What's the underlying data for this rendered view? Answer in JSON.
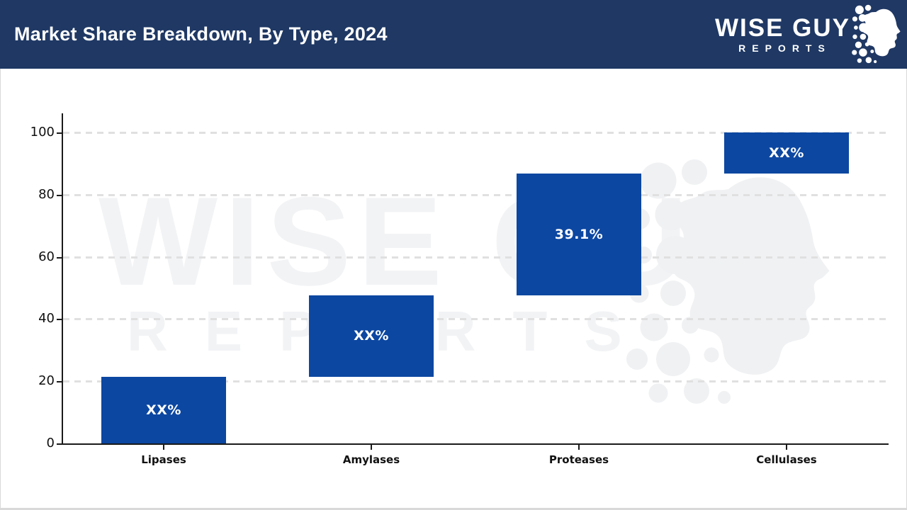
{
  "header": {
    "title": "Market Share Breakdown, By Type, 2024",
    "logo": {
      "line1": "WISE GUY",
      "line2": "REPORTS"
    }
  },
  "watermark": {
    "line1": "WISE GUY",
    "line2": "REPORTS"
  },
  "chart_data": {
    "type": "waterfall",
    "title": "Market Share Breakdown, By Type, 2024",
    "categories": [
      "Lipases",
      "Amylases",
      "Proteases",
      "Cellulases"
    ],
    "segments": [
      {
        "category": "Lipases",
        "start": 0,
        "end": 21.5,
        "label": "XX%"
      },
      {
        "category": "Amylases",
        "start": 21.5,
        "end": 47.6,
        "label": "XX%"
      },
      {
        "category": "Proteases",
        "start": 47.6,
        "end": 86.7,
        "label": "39.1%"
      },
      {
        "category": "Cellulases",
        "start": 86.7,
        "end": 100,
        "label": "XX%"
      }
    ],
    "yticks": [
      0,
      20,
      40,
      60,
      80,
      100
    ],
    "ylim": [
      0,
      106
    ],
    "grid": "dashed-horizontal",
    "legend": "none",
    "bar_color": "#0c47a1",
    "bar_label_color": "#ffffff",
    "header_color": "#1f3864",
    "watermark_color": "#f2f3f5"
  }
}
